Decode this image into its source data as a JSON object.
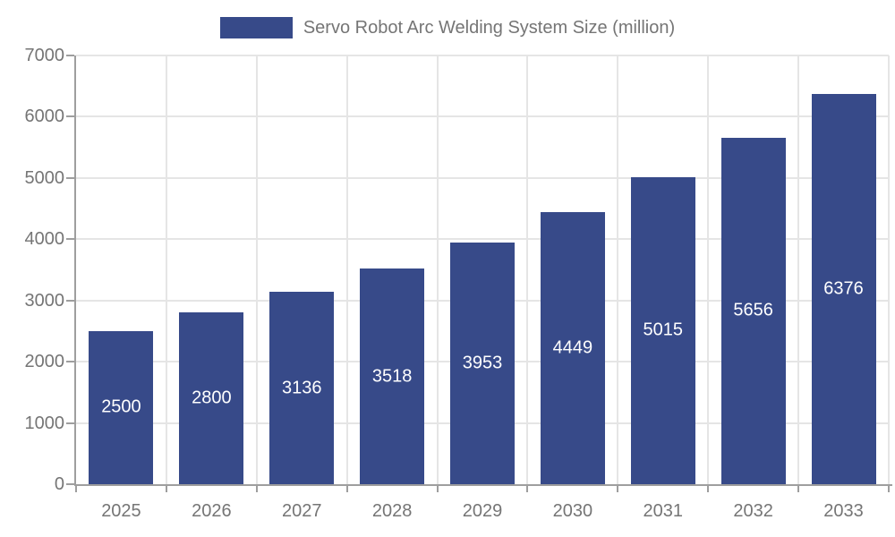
{
  "legend": {
    "label": "Servo Robot Arc Welding System Size (million)"
  },
  "chart_data": {
    "type": "bar",
    "title": "Servo Robot Arc Welding System Size (million)",
    "categories": [
      "2025",
      "2026",
      "2027",
      "2028",
      "2029",
      "2030",
      "2031",
      "2032",
      "2033"
    ],
    "values": [
      2500,
      2800,
      3136,
      3518,
      3953,
      4449,
      5015,
      5656,
      6376
    ],
    "xlabel": "",
    "ylabel": "",
    "ylim": [
      0,
      7000
    ],
    "yticks": [
      0,
      1000,
      2000,
      3000,
      4000,
      5000,
      6000,
      7000
    ],
    "grid": true,
    "legend_position": "top-center",
    "value_labels": "inside-center",
    "colors": {
      "bar": "#374A89",
      "value_label": "#ffffff",
      "grid": "#e5e5e5",
      "axis": "#9e9e9e",
      "tick_label": "#757575",
      "legend_text": "#757575",
      "background": "#ffffff"
    }
  }
}
